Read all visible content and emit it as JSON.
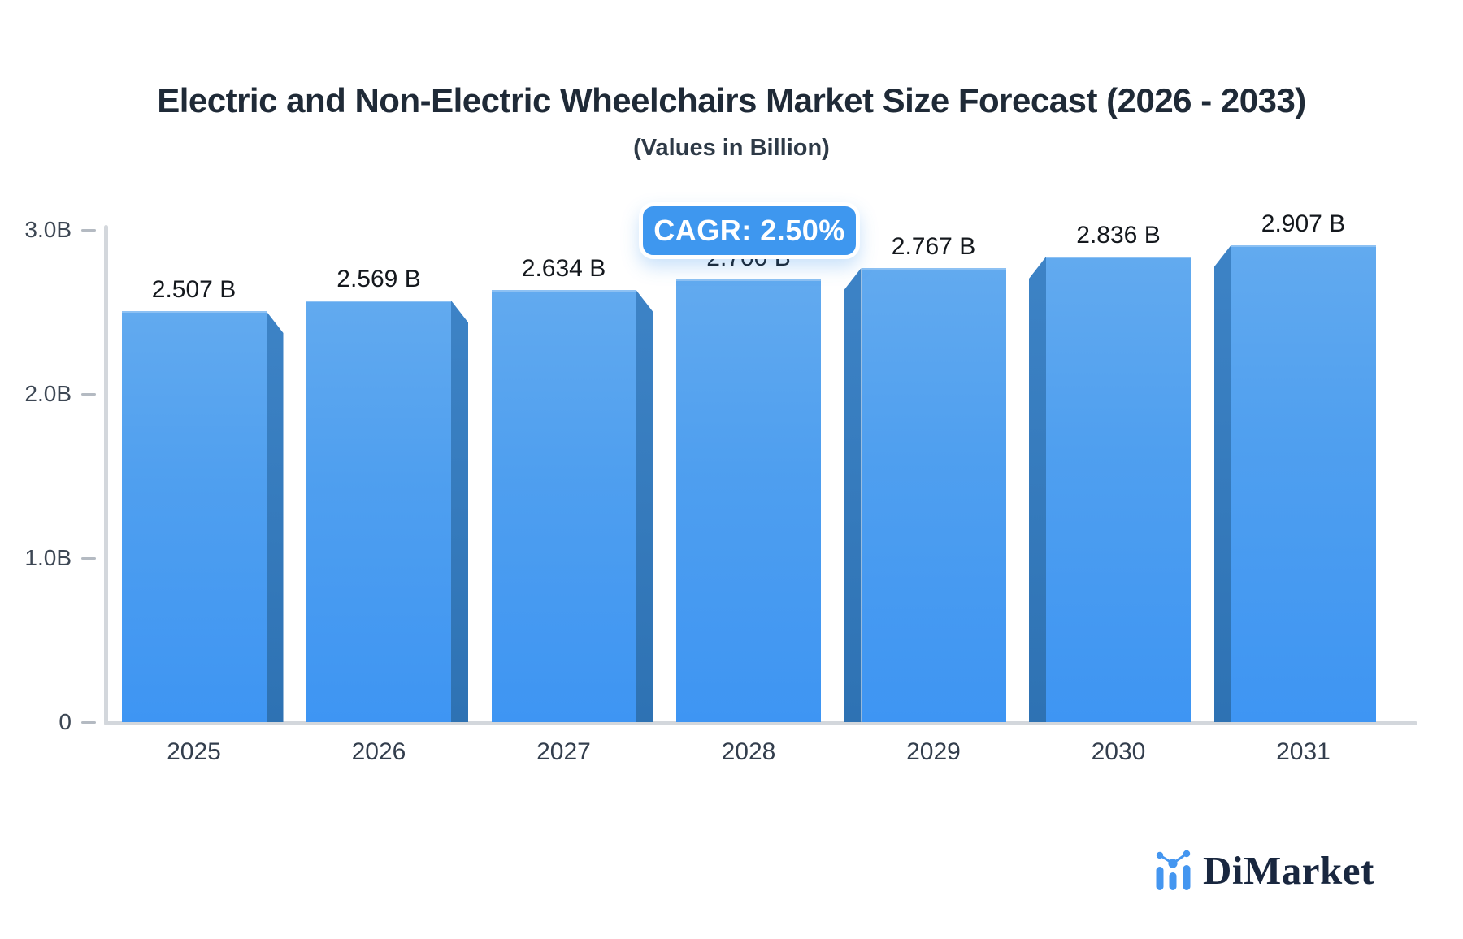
{
  "title": "Electric and Non-Electric Wheelchairs Market Size Forecast (2026 - 2033)",
  "subtitle": "(Values in Billion)",
  "badge": {
    "label": "CAGR: 2.50%"
  },
  "brand": {
    "name": "DiMarket",
    "icon": "dimarket-bars-icon"
  },
  "colors": {
    "bar_top": "#62aaef",
    "bar_bottom": "#3e95f3",
    "bar_side": "#2e72b3",
    "badge_bg": "#3e97ef",
    "axis_line": "#d3d7dc",
    "title_text": "#1f2a37",
    "tick_text": "#3d4754",
    "logo_navy": "#19273f",
    "logo_blue": "#4496f0"
  },
  "chart_data": {
    "type": "bar",
    "title": "Electric and Non-Electric Wheelchairs Market Size Forecast (2026 - 2033)",
    "subtitle": "(Values in Billion)",
    "categories": [
      "2025",
      "2026",
      "2027",
      "2028",
      "2029",
      "2030",
      "2031"
    ],
    "values": [
      2.507,
      2.569,
      2.634,
      2.7,
      2.767,
      2.836,
      2.907
    ],
    "value_labels": [
      "2.507 B",
      "2.569 B",
      "2.634 B",
      "2.700 B",
      "2.767 B",
      "2.836 B",
      "2.907 B"
    ],
    "unit": "Billion",
    "cagr": "2.50%",
    "xlabel": "",
    "ylabel": "",
    "ylim": [
      0,
      3.0
    ],
    "yticks": [
      {
        "value": 3.0,
        "label": "3.0B"
      },
      {
        "value": 2.0,
        "label": "2.0B"
      },
      {
        "value": 1.0,
        "label": "1.0B"
      },
      {
        "value": 0.0,
        "label": "0"
      }
    ],
    "grid": false,
    "legend": false,
    "bar_style": "3d-beveled"
  }
}
